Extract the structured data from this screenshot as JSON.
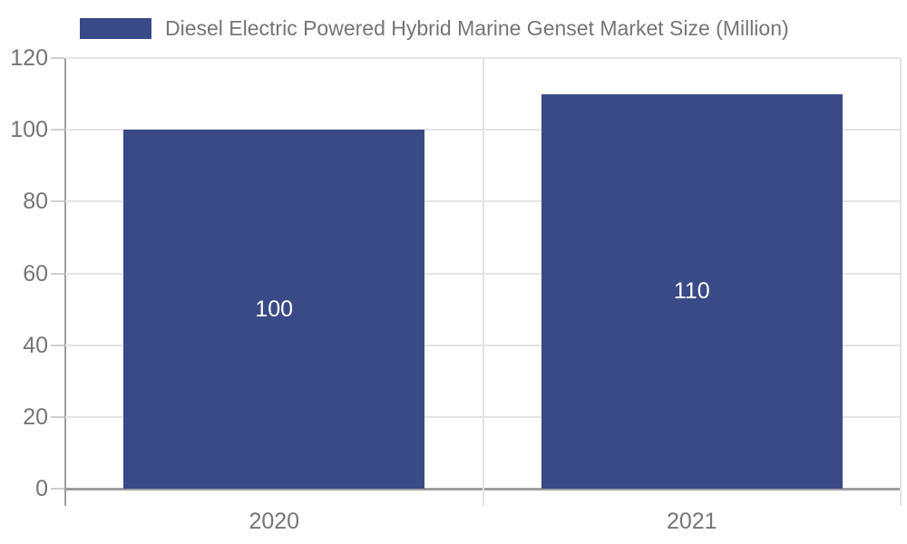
{
  "chart_data": {
    "type": "bar",
    "title": "Diesel Electric Powered Hybrid Marine Genset Market Size (Million)",
    "legend": [
      "Diesel Electric Powered Hybrid Marine Genset Market Size (Million)"
    ],
    "legend_position": "top-left",
    "categories": [
      "2020",
      "2021"
    ],
    "values": [
      100,
      110
    ],
    "data_labels": [
      "100",
      "110"
    ],
    "xlabel": "",
    "ylabel": "",
    "ylim": [
      0,
      120
    ],
    "yticks": [
      0,
      20,
      40,
      60,
      80,
      100,
      120
    ],
    "grid": true,
    "colors": {
      "bar": "#3A4A86",
      "grid": "#E5E5E5",
      "boundary_grid": "#E3E3E3",
      "axis": "#9E9E9E",
      "tick": "#CFCFCF",
      "label_text": "#757575",
      "data_label": "#FFFFFF",
      "background": "#FFFFFF"
    }
  }
}
